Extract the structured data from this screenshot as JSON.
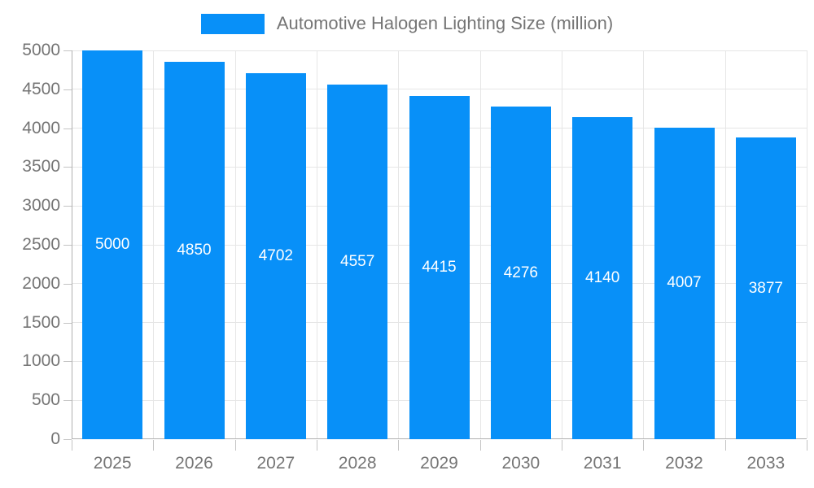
{
  "legend": {
    "label": "Automotive Halogen Lighting Size (million)",
    "swatch_color": "#0890f8"
  },
  "chart_data": {
    "type": "bar",
    "title": "Automotive Halogen Lighting Size (million)",
    "series_name": "Automotive Halogen Lighting Size (million)",
    "categories": [
      "2025",
      "2026",
      "2027",
      "2028",
      "2029",
      "2030",
      "2031",
      "2032",
      "2033"
    ],
    "values": [
      5000,
      4850,
      4702,
      4557,
      4415,
      4276,
      4140,
      4007,
      3877
    ],
    "xlabel": "",
    "ylabel": "",
    "ylim": [
      0,
      5000
    ],
    "yticks": [
      0,
      500,
      1000,
      1500,
      2000,
      2500,
      3000,
      3500,
      4000,
      4500,
      5000
    ],
    "grid": true,
    "legend_position": "top",
    "bar_color": "#0890f8",
    "value_label_color": "#ffffff",
    "axis_text_color": "#757575",
    "grid_color": "#e6e6e6",
    "axis_line_color": "#b0b0b0"
  }
}
